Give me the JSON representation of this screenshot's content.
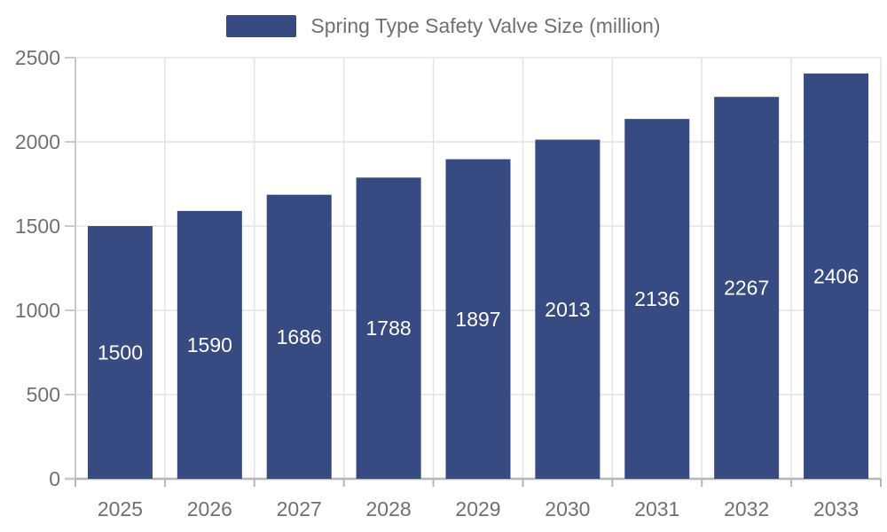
{
  "legend": {
    "label": "Spring Type Safety Valve Size (million)"
  },
  "chart_data": {
    "type": "bar",
    "title": "Spring Type Safety Valve Size (million)",
    "categories": [
      "2025",
      "2026",
      "2027",
      "2028",
      "2029",
      "2030",
      "2031",
      "2032",
      "2033"
    ],
    "series": [
      {
        "name": "Spring Type Safety Valve Size (million)",
        "values": [
          1500,
          1590,
          1686,
          1788,
          1897,
          2013,
          2136,
          2267,
          2406
        ]
      }
    ],
    "xlabel": "",
    "ylabel": "",
    "ylim": [
      0,
      2500
    ],
    "yticks": [
      0,
      500,
      1000,
      1500,
      2000,
      2500
    ],
    "grid": true,
    "legend_position": "top",
    "value_labels": "inside-center",
    "colors": {
      "bar": "#374a81",
      "value_label": "#ffffff",
      "axis_label": "#6e7079",
      "axis_line": "#b4b6ba",
      "grid_line": "#e4e4e8"
    }
  }
}
